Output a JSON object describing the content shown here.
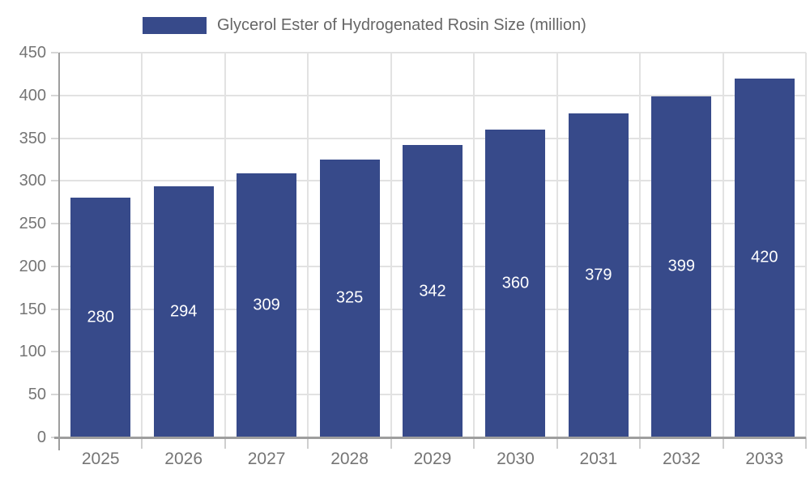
{
  "chart_data": {
    "type": "bar",
    "title": "",
    "xlabel": "",
    "ylabel": "",
    "categories": [
      "2025",
      "2026",
      "2027",
      "2028",
      "2029",
      "2030",
      "2031",
      "2032",
      "2033"
    ],
    "series": [
      {
        "name": "Glycerol Ester of Hydrogenated Rosin Size (million)",
        "values": [
          280,
          294,
          309,
          325,
          342,
          360,
          379,
          399,
          420
        ]
      }
    ],
    "ylim": [
      0,
      450
    ],
    "ytick_step": 50,
    "yticks": [
      0,
      50,
      100,
      150,
      200,
      250,
      300,
      350,
      400,
      450
    ],
    "grid": true,
    "legend_position": "top",
    "value_labels": "inside-center",
    "colors": {
      "bar": "#374A8A",
      "bar_value_label": "#FFFFFF",
      "grid_line": "#E2E2E2",
      "axis_line": "#9E9E9E",
      "tick_label": "#757575",
      "legend_text": "#666666"
    }
  }
}
